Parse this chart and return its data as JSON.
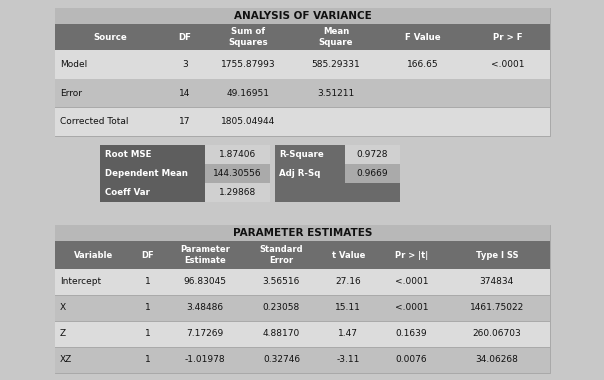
{
  "table1_title": "ANALYSIS OF VARIANCE",
  "table1_header": [
    "Source",
    "DF",
    "Sum of\nSquares",
    "Mean\nSquare",
    "F Value",
    "Pr > F"
  ],
  "table1_rows": [
    [
      "Model",
      "3",
      "1755.87993",
      "585.29331",
      "166.65",
      "<.0001"
    ],
    [
      "Error",
      "14",
      "49.16951",
      "3.51211",
      "",
      ""
    ],
    [
      "Corrected Total",
      "17",
      "1805.04944",
      "",
      "",
      ""
    ]
  ],
  "table2_left_labels": [
    "Root MSE",
    "Dependent Mean",
    "Coeff Var"
  ],
  "table2_left_vals": [
    "1.87406",
    "144.30556",
    "1.29868"
  ],
  "table2_right_labels": [
    "R-Square",
    "Adj R-Sq"
  ],
  "table2_right_vals": [
    "0.9728",
    "0.9669"
  ],
  "table3_title": "PARAMETER ESTIMATES",
  "table3_header": [
    "Variable",
    "DF",
    "Parameter\nEstimate",
    "Standard\nError",
    "t Value",
    "Pr > |t|",
    "Type I SS"
  ],
  "table3_rows": [
    [
      "Intercept",
      "1",
      "96.83045",
      "3.56516",
      "27.16",
      "<.0001",
      "374834"
    ],
    [
      "X",
      "1",
      "3.48486",
      "0.23058",
      "15.11",
      "<.0001",
      "1461.75022"
    ],
    [
      "Z",
      "1",
      "7.17269",
      "4.88170",
      "1.47",
      "0.1639",
      "260.06703"
    ],
    [
      "XZ",
      "1",
      "-1.01978",
      "0.32746",
      "-3.11",
      "0.0076",
      "34.06268"
    ]
  ],
  "outer_bg": "#c8c8c8",
  "table_bg": "#d8d8d8",
  "title_bg": "#b8b8b8",
  "header_bg": "#6e6e6e",
  "header_fg": "#ffffff",
  "row_dark": "#c0c0c0",
  "row_light": "#dcdcdc",
  "cell_light": "#d0d0d0",
  "t2_label_bg": "#5e5e5e",
  "t2_val_bg_light": "#d0d0d0",
  "t2_val_bg_dark": "#aaaaaa",
  "t2_right_label_bg": "#6a6a6a",
  "t2_right_val_bg": "#d4d4d4"
}
